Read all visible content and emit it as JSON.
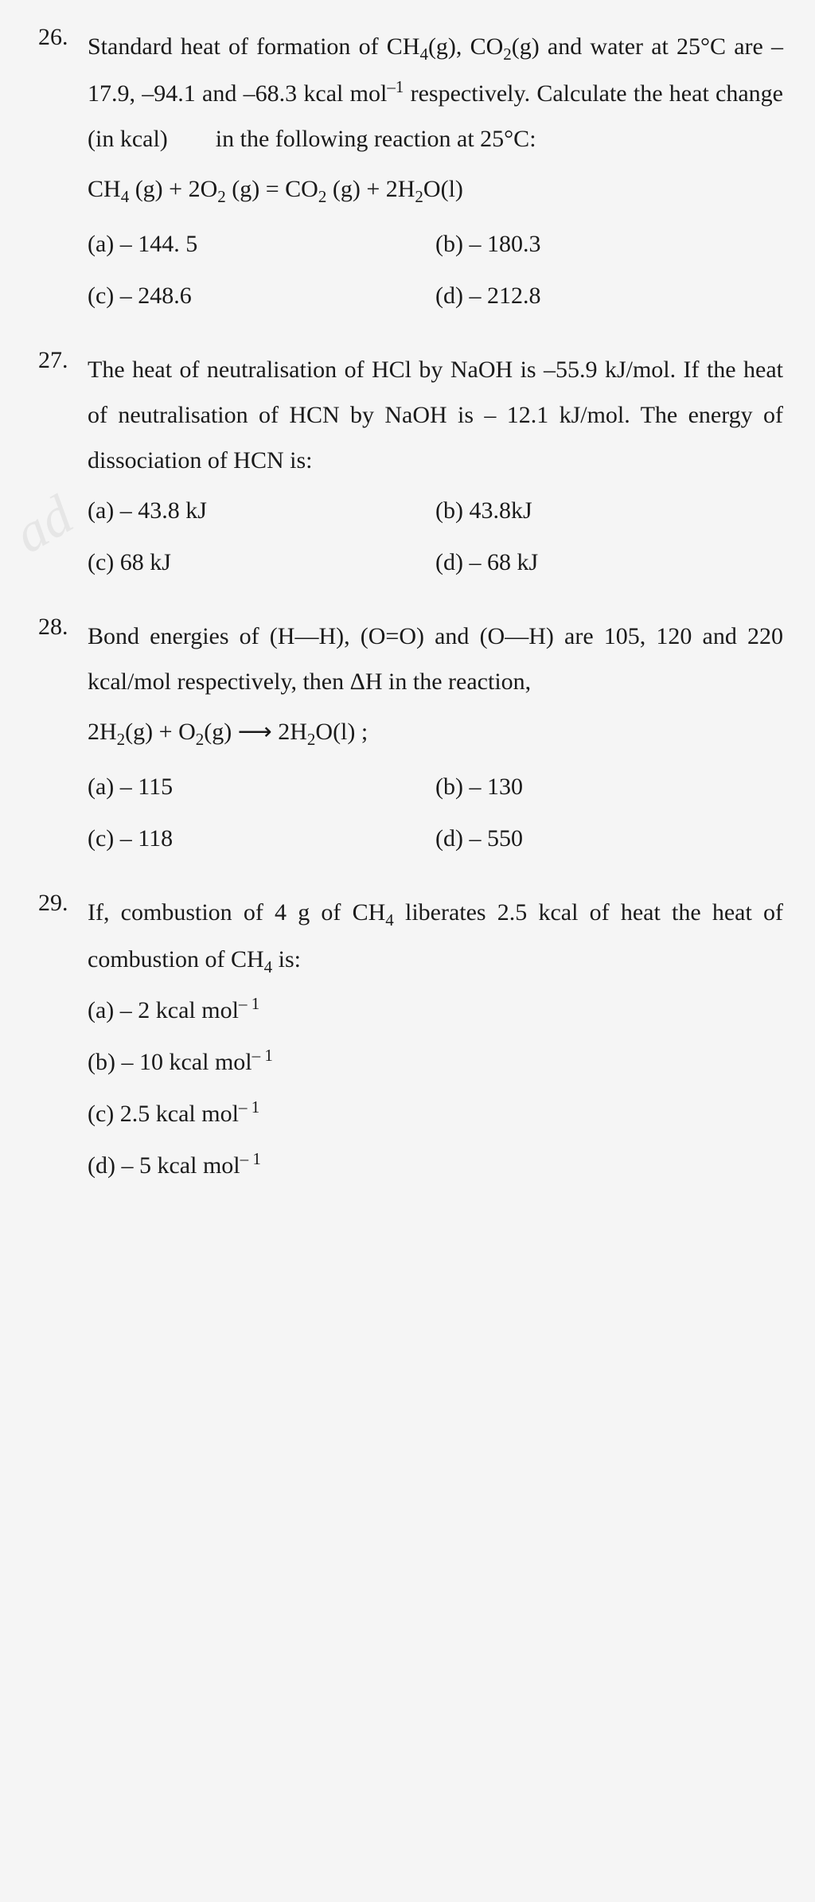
{
  "questions": [
    {
      "number": "26.",
      "text": "Standard heat of formation of CH₄(g), CO₂(g) and water at 25°C are –17.9, –94.1 and –68.3 kcal mol⁻¹ respectively. Calculate the heat change (in kcal)       in the following reaction at 25°C:",
      "equation": "CH₄ (g) + 2O₂ (g) = CO₂ (g) + 2H₂O(l)",
      "options": [
        {
          "label": "(a)",
          "value": "– 144. 5"
        },
        {
          "label": "(b)",
          "value": "– 180.3"
        },
        {
          "label": "(c)",
          "value": "– 248.6"
        },
        {
          "label": "(d)",
          "value": "– 212.8"
        }
      ],
      "option_layout": "half"
    },
    {
      "number": "27.",
      "text": "The heat of neutralisation of HCl by NaOH is –55.9 kJ/mol. If the heat of neutralisation of HCN by NaOH is – 12.1 kJ/mol. The energy of dissociation of HCN is:",
      "equation": "",
      "options": [
        {
          "label": "(a)",
          "value": "– 43.8 kJ"
        },
        {
          "label": "(b)",
          "value": "43.8kJ"
        },
        {
          "label": "(c)",
          "value": "68 kJ"
        },
        {
          "label": "(d)",
          "value": "– 68 kJ"
        }
      ],
      "option_layout": "half"
    },
    {
      "number": "28.",
      "text": "Bond energies of (H—H), (O=O) and (O—H) are 105, 120 and 220 kcal/mol respectively, then ΔH in the reaction,",
      "equation": "2H₂(g) + O₂(g) ⟶ 2H₂O(l) ;",
      "options": [
        {
          "label": "(a)",
          "value": "– 115"
        },
        {
          "label": "(b)",
          "value": "– 130"
        },
        {
          "label": "(c)",
          "value": "– 118"
        },
        {
          "label": "(d)",
          "value": "– 550"
        }
      ],
      "option_layout": "half"
    },
    {
      "number": "29.",
      "text": "If, combustion of 4 g of CH₄ liberates 2.5 kcal of heat the heat of combustion of CH₄ is:",
      "equation": "",
      "options": [
        {
          "label": "(a)",
          "value": "– 2 kcal mol⁻¹"
        },
        {
          "label": "(b)",
          "value": "– 10 kcal mol⁻¹"
        },
        {
          "label": "(c)",
          "value": "2.5 kcal mol⁻¹"
        },
        {
          "label": "(d)",
          "value": "– 5 kcal mol⁻¹"
        }
      ],
      "option_layout": "full"
    }
  ],
  "watermark": "ad"
}
